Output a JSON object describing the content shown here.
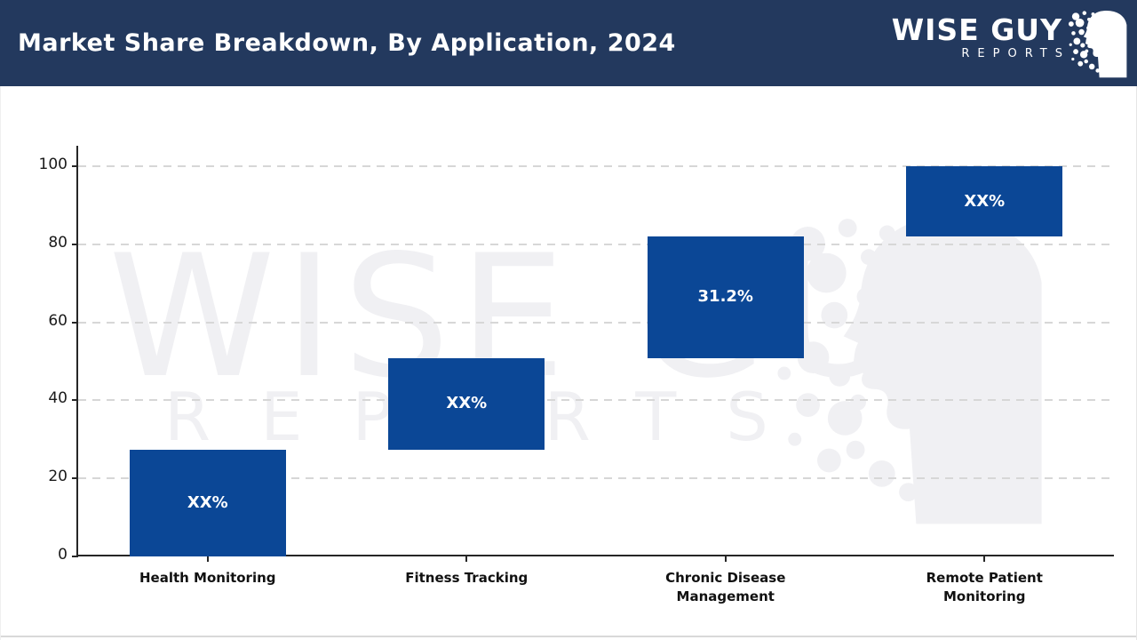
{
  "header": {
    "title": "Market Share Breakdown, By Application, 2024",
    "logo": {
      "name": "WISE GUY",
      "sub": "REPORTS"
    }
  },
  "watermark": {
    "line1": "WISE GUY",
    "line2": "REPORTS"
  },
  "colors": {
    "header_bg": "#23395E",
    "bar": "#0B4796",
    "bar_label": "#FFFFFF",
    "grid": "#D7D7D7",
    "axis": "#262626",
    "watermark": "#F0F0F3"
  },
  "chart_data": {
    "type": "bar",
    "subtype": "waterfall",
    "title": "Market Share Breakdown, By Application, 2024",
    "categories": [
      "Health Monitoring",
      "Fitness Tracking",
      "Chronic Disease Management",
      "Remote Patient Monitoring"
    ],
    "segments": [
      {
        "category": "Health Monitoring",
        "start": 0,
        "end": 27.3,
        "label": "XX%"
      },
      {
        "category": "Fitness Tracking",
        "start": 27.3,
        "end": 50.7,
        "label": "XX%"
      },
      {
        "category": "Chronic Disease Management",
        "start": 50.7,
        "end": 81.9,
        "label": "31.2%"
      },
      {
        "category": "Remote Patient Monitoring",
        "start": 81.9,
        "end": 100,
        "label": "XX%"
      }
    ],
    "ylim": [
      0,
      100
    ],
    "yticks": [
      0,
      20,
      40,
      60,
      80,
      100
    ],
    "xlabel": "",
    "ylabel": "",
    "grid": "dashed-horizontal",
    "legend": "none"
  }
}
